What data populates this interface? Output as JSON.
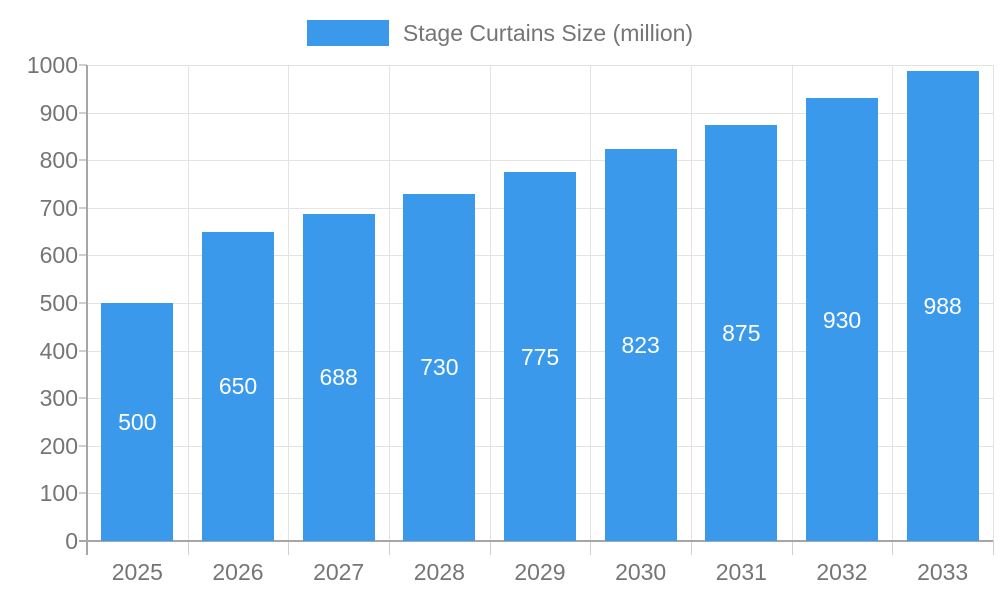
{
  "chart_data": {
    "type": "bar",
    "title": "Stage Curtains Size (million)",
    "categories": [
      "2025",
      "2026",
      "2027",
      "2028",
      "2029",
      "2030",
      "2031",
      "2032",
      "2033"
    ],
    "values": [
      500,
      650,
      688,
      730,
      775,
      823,
      875,
      930,
      988
    ],
    "xlabel": "",
    "ylabel": "",
    "ylim": [
      0,
      1000
    ],
    "ytick_step": 100,
    "grid": true,
    "legend_position": "top-center",
    "value_labels": "inside-center-white",
    "colors": {
      "bar": "#3b99ec",
      "axis_line": "#a6a6a6",
      "gridline": "#e3e3e3",
      "tick": "#cfcfcf",
      "tick_label": "#757575",
      "legend_text": "#757575",
      "value_label": "#ffffff",
      "background": "#ffffff"
    }
  }
}
